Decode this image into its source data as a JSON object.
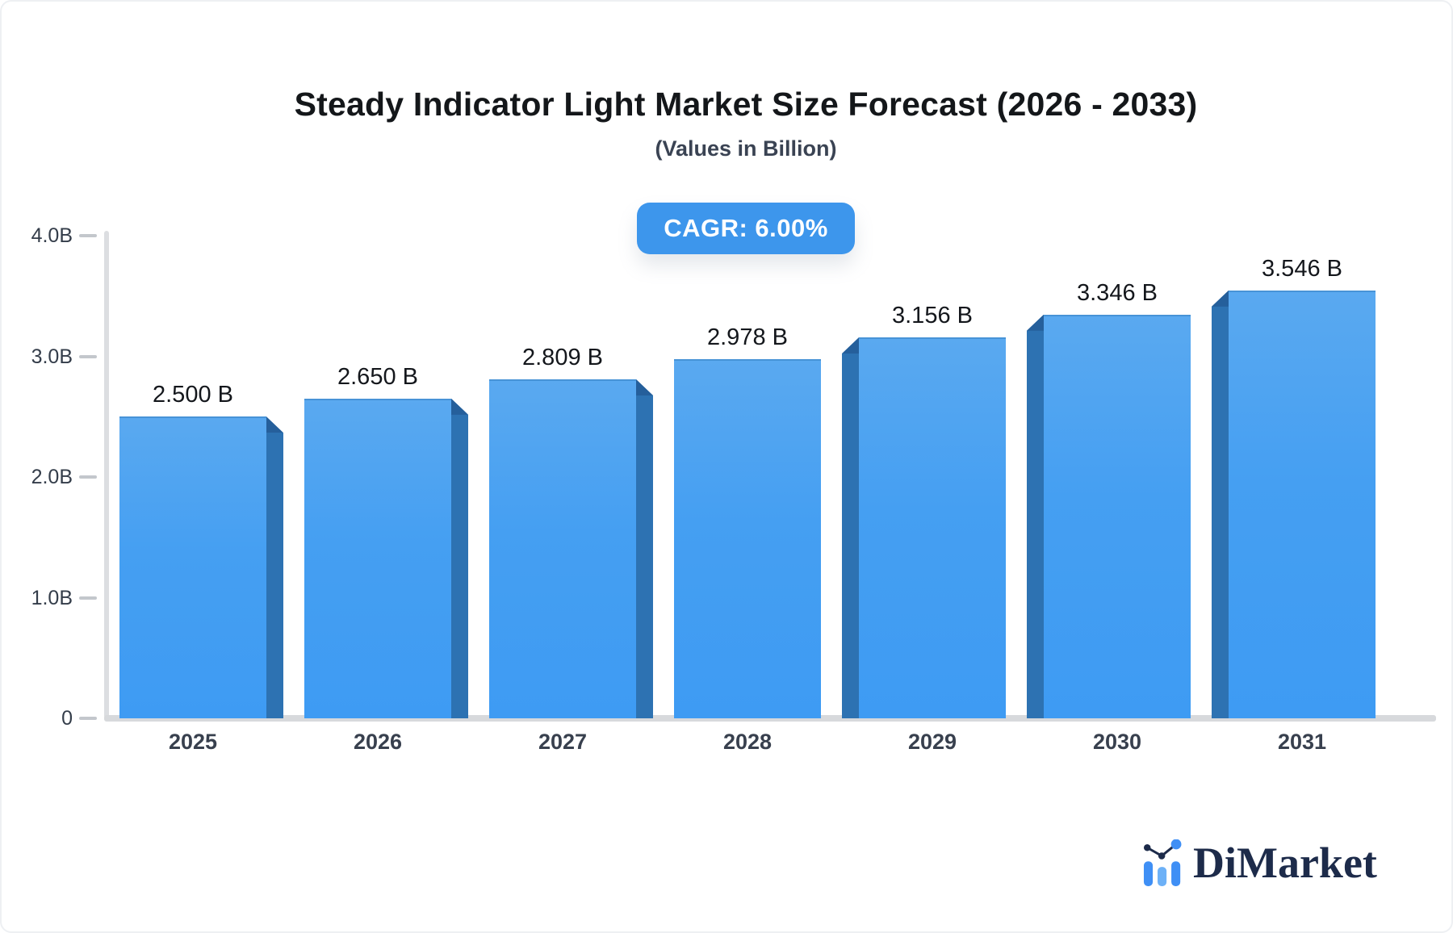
{
  "header": {
    "title": "Steady Indicator Light Market Size Forecast (2026 - 2033)",
    "subtitle": "(Values in Billion)",
    "cagr_badge": "CAGR: 6.00%"
  },
  "chart_data": {
    "type": "bar",
    "title": "Steady Indicator Light Market Size Forecast (2026 - 2033)",
    "subtitle": "(Values in Billion)",
    "unit": "Billion",
    "cagr_text": "CAGR: 6.00%",
    "cagr_value_pct": 6.0,
    "categories": [
      "2025",
      "2026",
      "2027",
      "2028",
      "2029",
      "2030",
      "2031"
    ],
    "values": [
      2.5,
      2.65,
      2.809,
      2.978,
      3.156,
      3.346,
      3.546
    ],
    "value_labels": [
      "2.500 B",
      "2.650 B",
      "2.809 B",
      "2.978 B",
      "3.156 B",
      "3.346 B",
      "3.546 B"
    ],
    "y_ticks": [
      {
        "label": "4.0B",
        "value": 4.0
      },
      {
        "label": "3.0B",
        "value": 3.0
      },
      {
        "label": "2.0B",
        "value": 2.0
      },
      {
        "label": "1.0B",
        "value": 1.0
      },
      {
        "label": "0",
        "value": 0.0
      }
    ],
    "ylim": [
      0,
      4.0
    ],
    "grid": "off",
    "legend": "none",
    "bar_style": "3d-extruded, extrusion faces outward from center bar",
    "colors": {
      "bar_face_top": "#5aa9f0",
      "bar_face_bottom": "#3e9bf3",
      "bar_side": "#2d72b2",
      "bar_bevel": "#255f9b",
      "badge_bg": "#3d96ec",
      "badge_text": "#ffffff",
      "axis": "#d8dadd",
      "tick_dash": "#c3c7cc",
      "title_text": "#14171a",
      "muted_text": "#3a4353",
      "logo_navy": "#1d2b4a",
      "logo_blue": "#3f8ff5"
    }
  },
  "logo": {
    "text": "DiMarket",
    "icon": "bar-line-chart-icon"
  }
}
